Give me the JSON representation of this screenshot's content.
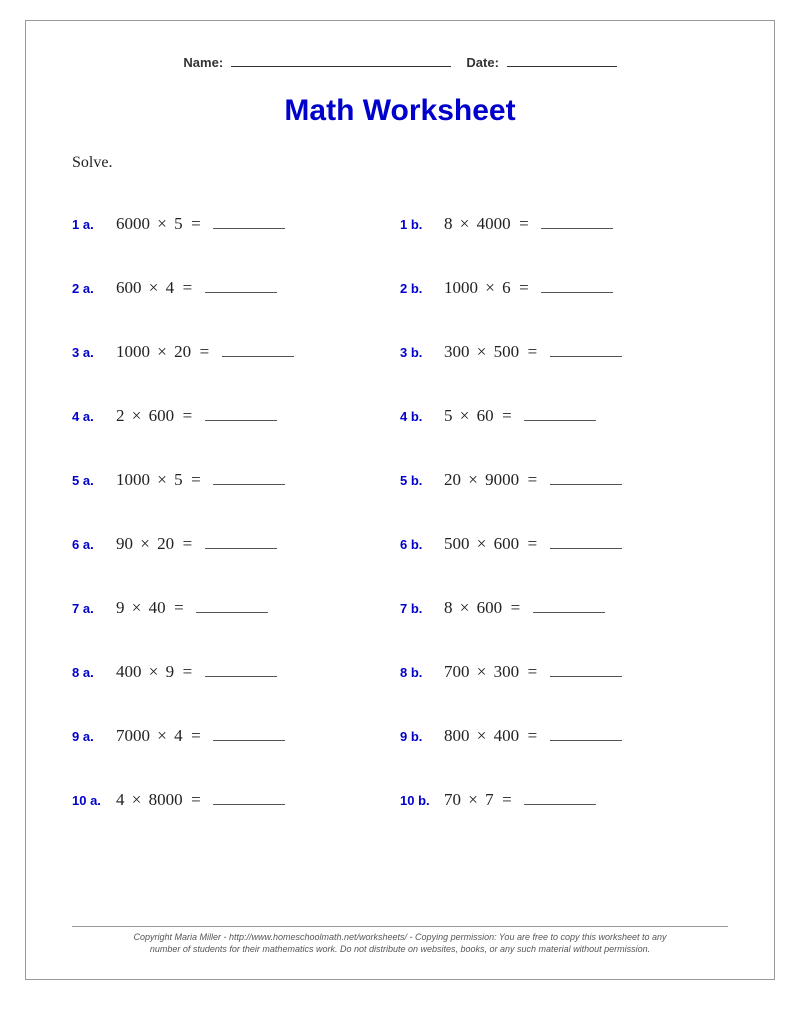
{
  "header": {
    "name_label": "Name:",
    "date_label": "Date:"
  },
  "title": "Math Worksheet",
  "instruction": "Solve.",
  "colors": {
    "title_color": "#0000cc",
    "label_color": "#0000cc",
    "text_color": "#222222",
    "border_color": "#999999",
    "background": "#ffffff"
  },
  "typography": {
    "title_fontsize": 30,
    "label_fontsize": 13,
    "problem_fontsize": 17,
    "footer_fontsize": 9
  },
  "mult_symbol": "×",
  "equals": "=",
  "problems": [
    {
      "la": "1 a.",
      "a1": "6000",
      "a2": "5",
      "lb": "1 b.",
      "b1": "8",
      "b2": "4000"
    },
    {
      "la": "2 a.",
      "a1": "600",
      "a2": "4",
      "lb": "2 b.",
      "b1": "1000",
      "b2": "6"
    },
    {
      "la": "3 a.",
      "a1": "1000",
      "a2": "20",
      "lb": "3 b.",
      "b1": "300",
      "b2": "500"
    },
    {
      "la": "4 a.",
      "a1": "2",
      "a2": "600",
      "lb": "4 b.",
      "b1": "5",
      "b2": "60"
    },
    {
      "la": "5 a.",
      "a1": "1000",
      "a2": "5",
      "lb": "5 b.",
      "b1": "20",
      "b2": "9000"
    },
    {
      "la": "6 a.",
      "a1": "90",
      "a2": "20",
      "lb": "6 b.",
      "b1": "500",
      "b2": "600"
    },
    {
      "la": "7 a.",
      "a1": "9",
      "a2": "40",
      "lb": "7 b.",
      "b1": "8",
      "b2": "600"
    },
    {
      "la": "8 a.",
      "a1": "400",
      "a2": "9",
      "lb": "8 b.",
      "b1": "700",
      "b2": "300"
    },
    {
      "la": "9 a.",
      "a1": "7000",
      "a2": "4",
      "lb": "9 b.",
      "b1": "800",
      "b2": "400"
    },
    {
      "la": "10 a.",
      "a1": "4",
      "a2": "8000",
      "lb": "10 b.",
      "b1": "70",
      "b2": "7"
    }
  ],
  "footer_line1": "Copyright Maria Miller - http://www.homeschoolmath.net/worksheets/ - Copying permission: You are free to copy this worksheet to any",
  "footer_line2": "number of students for their mathematics work. Do not distribute on websites, books, or any such material without permission."
}
